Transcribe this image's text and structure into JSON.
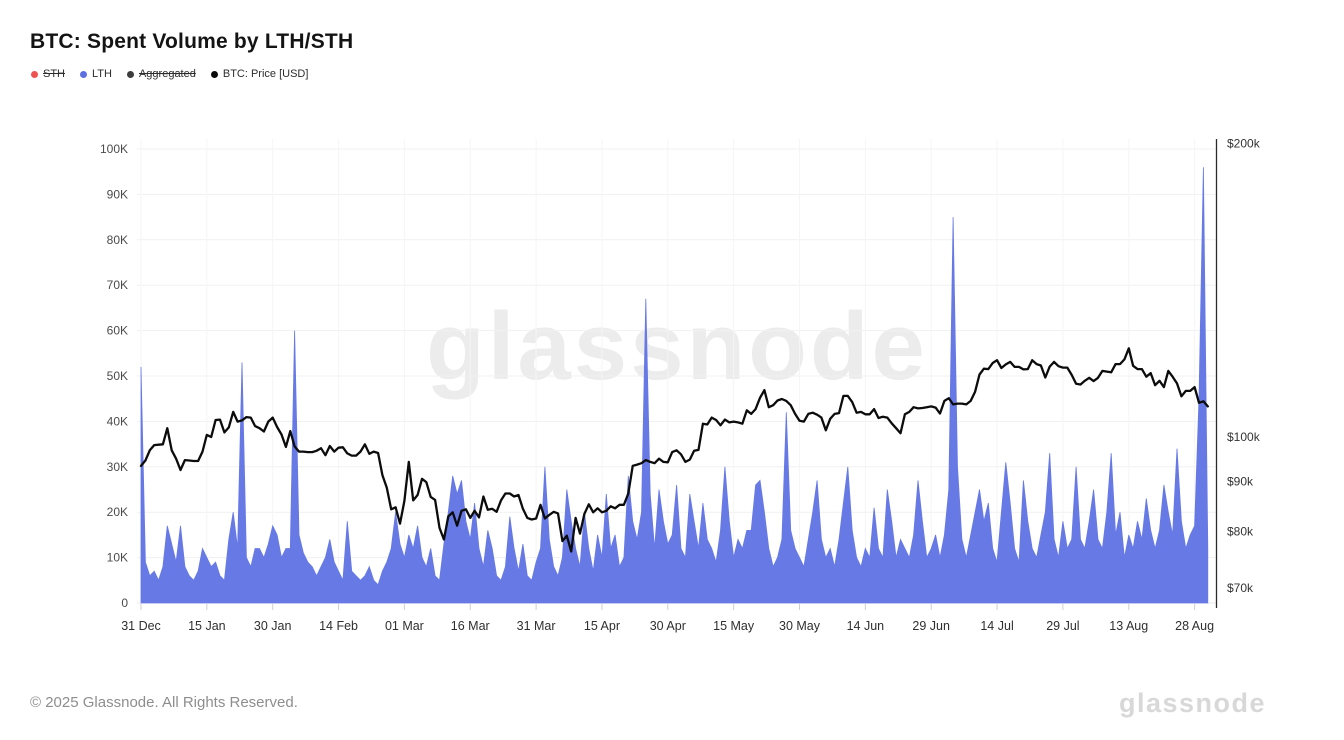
{
  "title": "BTC: Spent Volume by LTH/STH",
  "legend": {
    "items": [
      {
        "label": "STH",
        "color": "#ee5352",
        "disabled": true
      },
      {
        "label": "LTH",
        "color": "#5b6fe3",
        "disabled": false
      },
      {
        "label": "Aggregated",
        "color": "#3c3c3c",
        "disabled": true
      },
      {
        "label": "BTC: Price [USD]",
        "color": "#0b0b0b",
        "disabled": false
      }
    ]
  },
  "watermark": "glassnode",
  "footer": {
    "copyright": "© 2025 Glassnode. All Rights Reserved.",
    "brand": "glassnode"
  },
  "chart_data": {
    "type": "area+line",
    "cadence": "daily",
    "x_start": "31 Dec 2024",
    "x_end": "31 Aug 2025",
    "x_tick_interval_days": 15,
    "x_tick_labels": [
      "31 Dec",
      "15 Jan",
      "30 Jan",
      "14 Feb",
      "01 Mar",
      "16 Mar",
      "31 Mar",
      "15 Apr",
      "30 Apr",
      "15 May",
      "30 May",
      "14 Jun",
      "29 Jun",
      "14 Jul",
      "29 Jul",
      "13 Aug",
      "28 Aug"
    ],
    "left_axis": {
      "unit": "K BTC (spent volume)",
      "range": [
        0,
        100
      ],
      "ticks": [
        {
          "label": "0",
          "value": 0
        },
        {
          "label": "10K",
          "value": 10
        },
        {
          "label": "20K",
          "value": 20
        },
        {
          "label": "30K",
          "value": 30
        },
        {
          "label": "40K",
          "value": 40
        },
        {
          "label": "50K",
          "value": 50
        },
        {
          "label": "60K",
          "value": 60
        },
        {
          "label": "70K",
          "value": 70
        },
        {
          "label": "80K",
          "value": 80
        },
        {
          "label": "90K",
          "value": 90
        },
        {
          "label": "100K",
          "value": 100
        }
      ]
    },
    "right_axis": {
      "unit": "USD (log scale)",
      "scale": "log",
      "ticks": [
        {
          "label": "$70k",
          "value": 70
        },
        {
          "label": "$80k",
          "value": 80
        },
        {
          "label": "$90k",
          "value": 90
        },
        {
          "label": "$100k",
          "value": 100
        },
        {
          "label": "$200k",
          "value": 200
        }
      ]
    },
    "hidden_series": [
      "STH",
      "Aggregated"
    ],
    "grid": true,
    "legend_position": "top-left",
    "series": [
      {
        "name": "LTH",
        "type": "area",
        "color": "#6679e5",
        "unit": "K BTC",
        "values": [
          52,
          9,
          6,
          7,
          5,
          8,
          17,
          13,
          9,
          17,
          8,
          6,
          5,
          7,
          12,
          10,
          8,
          9,
          6,
          5,
          14,
          20,
          12,
          53,
          10,
          8,
          12,
          12,
          10,
          13,
          17,
          15,
          10,
          12,
          12,
          60,
          15,
          11,
          9,
          8,
          6,
          8,
          10,
          14,
          9,
          7,
          5,
          18,
          7,
          6,
          5,
          6,
          8,
          5,
          4,
          7,
          9,
          12,
          20,
          13,
          10,
          15,
          12,
          17,
          10,
          8,
          12,
          6,
          5,
          13,
          20,
          28,
          24,
          27,
          18,
          14,
          22,
          12,
          8,
          16,
          12,
          6,
          5,
          8,
          19,
          12,
          7,
          13,
          6,
          5,
          9,
          12,
          30,
          14,
          8,
          6,
          10,
          25,
          18,
          12,
          8,
          20,
          12,
          7,
          15,
          10,
          24,
          12,
          15,
          8,
          10,
          28,
          18,
          14,
          20,
          67,
          24,
          12,
          25,
          18,
          13,
          15,
          26,
          12,
          10,
          24,
          18,
          12,
          22,
          14,
          12,
          9,
          16,
          30,
          18,
          10,
          14,
          12,
          16,
          16,
          26,
          27,
          20,
          12,
          8,
          10,
          14,
          42,
          16,
          12,
          10,
          8,
          14,
          20,
          27,
          14,
          10,
          12,
          8,
          14,
          22,
          30,
          16,
          10,
          8,
          12,
          10,
          21,
          12,
          10,
          25,
          18,
          10,
          14,
          12,
          10,
          15,
          27,
          18,
          10,
          12,
          15,
          10,
          15,
          25,
          85,
          30,
          14,
          10,
          15,
          20,
          25,
          18,
          22,
          12,
          9,
          20,
          31,
          22,
          12,
          9,
          27,
          18,
          12,
          10,
          15,
          20,
          33,
          14,
          10,
          18,
          12,
          14,
          30,
          14,
          12,
          18,
          25,
          14,
          12,
          20,
          33,
          15,
          20,
          10,
          15,
          12,
          18,
          14,
          23,
          16,
          12,
          16,
          26,
          20,
          15,
          34,
          18,
          12,
          15,
          17,
          45,
          96,
          12
        ]
      },
      {
        "name": "BTC: Price [USD]",
        "type": "line",
        "color": "#0c0c0c",
        "unit": "$k",
        "values": [
          93.4,
          94.6,
          96.9,
          98.1,
          98.2,
          98.3,
          102.1,
          96.9,
          95.0,
          92.5,
          94.7,
          94.6,
          94.5,
          94.5,
          96.6,
          100.5,
          100.0,
          104.1,
          104.2,
          101.1,
          102.3,
          106.1,
          103.7,
          104.0,
          104.8,
          104.7,
          102.6,
          102.1,
          101.3,
          103.7,
          104.7,
          102.4,
          100.6,
          97.7,
          101.4,
          97.8,
          96.6,
          96.6,
          96.5,
          96.5,
          96.8,
          97.4,
          95.8,
          97.9,
          96.6,
          97.5,
          97.6,
          96.2,
          95.7,
          95.7,
          96.6,
          98.3,
          96.1,
          96.6,
          96.3,
          91.4,
          88.7,
          84.3,
          84.7,
          81.5,
          86.0,
          94.3,
          86.1,
          87.2,
          90.6,
          89.9,
          86.8,
          86.2,
          80.7,
          78.5,
          82.9,
          83.7,
          81.1,
          84.0,
          84.3,
          82.6,
          84.0,
          82.7,
          86.9,
          84.2,
          84.4,
          83.8,
          86.1,
          87.5,
          87.5,
          86.9,
          87.2,
          84.4,
          82.6,
          82.3,
          82.5,
          85.2,
          82.5,
          83.2,
          83.8,
          83.5,
          78.2,
          79.2,
          76.3,
          82.6,
          79.6,
          83.4,
          85.3,
          83.7,
          84.5,
          83.7,
          84.0,
          84.9,
          84.5,
          85.2,
          85.2,
          87.5,
          93.4,
          93.7,
          94.0,
          94.7,
          94.3,
          94.0,
          95.0,
          94.3,
          94.2,
          96.5,
          96.9,
          96.0,
          94.3,
          94.8,
          96.8,
          97.0,
          103.2,
          103.0,
          104.7,
          104.1,
          102.8,
          104.2,
          103.5,
          103.7,
          103.5,
          103.2,
          106.5,
          105.6,
          106.8,
          109.7,
          111.7,
          107.3,
          107.8,
          109.0,
          109.4,
          108.9,
          107.8,
          105.6,
          103.9,
          103.7,
          105.6,
          105.9,
          105.4,
          104.7,
          101.6,
          104.4,
          105.6,
          105.8,
          110.2,
          110.2,
          108.6,
          105.9,
          106.1,
          105.5,
          105.5,
          106.8,
          104.6,
          104.9,
          104.7,
          103.3,
          102.1,
          100.9,
          105.5,
          106.1,
          107.3,
          107.0,
          107.1,
          107.3,
          107.5,
          107.2,
          105.7,
          108.9,
          109.6,
          108.0,
          108.2,
          108.2,
          108.0,
          108.9,
          111.3,
          115.9,
          117.5,
          117.4,
          119.1,
          119.9,
          117.7,
          118.7,
          119.4,
          118.0,
          118.0,
          117.3,
          117.4,
          119.9,
          118.8,
          118.4,
          115.1,
          118.1,
          119.4,
          118.2,
          117.8,
          117.8,
          115.8,
          113.4,
          113.2,
          114.2,
          115.0,
          114.1,
          115.0,
          116.9,
          116.7,
          116.5,
          118.8,
          118.8,
          120.1,
          123.3,
          118.3,
          117.4,
          117.4,
          115.3,
          116.3,
          113.0,
          114.2,
          112.5,
          116.9,
          115.3,
          113.5,
          110.1,
          111.5,
          111.5,
          112.5,
          108.4,
          108.8,
          107.5
        ]
      }
    ]
  }
}
